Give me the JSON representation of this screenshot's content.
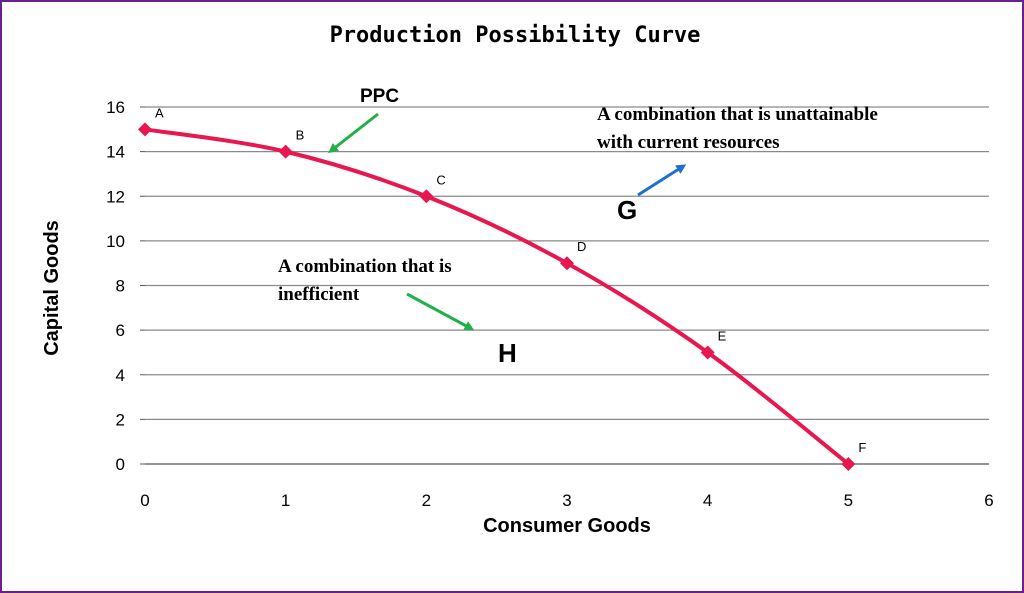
{
  "chart_data": {
    "type": "line",
    "title": "Production Possibility Curve",
    "xlabel": "Consumer Goods",
    "ylabel": "Capital Goods",
    "xlim": [
      0,
      6
    ],
    "ylim": [
      0,
      16
    ],
    "x_ticks": [
      0,
      1,
      2,
      3,
      4,
      5,
      6
    ],
    "y_ticks": [
      0,
      2,
      4,
      6,
      8,
      10,
      12,
      14,
      16
    ],
    "grid": "horizontal",
    "series": [
      {
        "color": "#e8174f",
        "points": [
          {
            "label": "A",
            "x": 0,
            "y": 15
          },
          {
            "label": "B",
            "x": 1,
            "y": 14
          },
          {
            "label": "C",
            "x": 2,
            "y": 12
          },
          {
            "label": "D",
            "x": 3,
            "y": 9
          },
          {
            "label": "E",
            "x": 4,
            "y": 5
          },
          {
            "label": "F",
            "x": 5,
            "y": 0
          }
        ]
      }
    ],
    "annotations": {
      "ppc": {
        "text": "PPC",
        "arrow_color": "#22b04a"
      },
      "g": {
        "letter": "G",
        "line1": "A combination  that is unattainable",
        "line2": "with current resources",
        "arrow_color": "#1f6fd1"
      },
      "h": {
        "letter": "H",
        "line1": "A combination  that is",
        "line2": "inefficient",
        "arrow_color": "#22b04a"
      }
    }
  }
}
